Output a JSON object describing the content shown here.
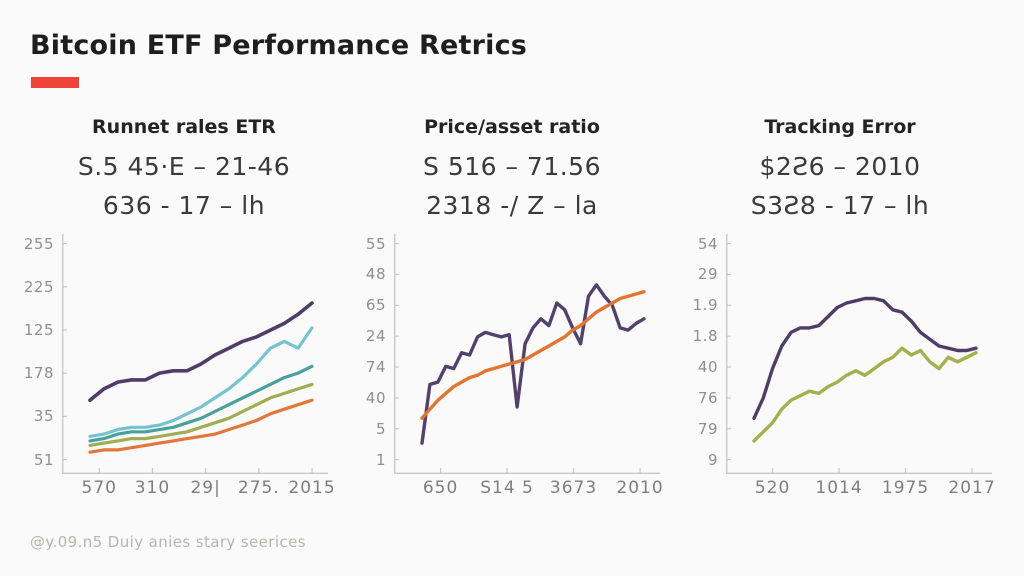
{
  "header": {
    "title": "Bitcoin ETF Performance Retrics",
    "accent_color": "#ee4438"
  },
  "metrics": [
    {
      "title": "Runnet rales ETR",
      "line1": "S.5 45·E – 21-46",
      "line2": "636 - 17 – lh"
    },
    {
      "title": "Price/asset ratio",
      "line1": "S 516 – 71.56",
      "line2": "2318 -/ Z – la"
    },
    {
      "title": "Tracking Error",
      "line1": "$2Ƨ6 – 2010",
      "line2": "S3Ƨ8 - 17 – lh"
    }
  ],
  "footer": {
    "caption": "@y.09.n5 Duiy anies stary seerices"
  },
  "chart_data": [
    {
      "type": "line",
      "title": "Runnet rales ETR",
      "xlabel": "",
      "ylabel": "",
      "grid": false,
      "legend": "none",
      "ylim": [
        0,
        100
      ],
      "y_tick_labels": [
        "255",
        "225",
        "125",
        "178",
        "35",
        "51"
      ],
      "x_tick_labels": [
        "570",
        "310",
        "29|",
        "275.",
        "2015"
      ],
      "series": [
        {
          "name": "purple-line",
          "color": "#4e3d68",
          "width": 3.6,
          "values": [
            30,
            35,
            38,
            39,
            39,
            42,
            43,
            43,
            46,
            50,
            53,
            56,
            58,
            61,
            64,
            68,
            73
          ]
        },
        {
          "name": "cyan-line",
          "color": "#74c3cf",
          "width": 3.2,
          "values": [
            14,
            15,
            17,
            18,
            18,
            19,
            21,
            24,
            27,
            31,
            35,
            40,
            46,
            53,
            56,
            53,
            62
          ]
        },
        {
          "name": "teal-line",
          "color": "#47a29b",
          "width": 3.2,
          "values": [
            12,
            13,
            15,
            16,
            16,
            17,
            18,
            20,
            22,
            25,
            28,
            31,
            34,
            37,
            40,
            42,
            45
          ]
        },
        {
          "name": "olive-line",
          "color": "#a0ad51",
          "width": 3.2,
          "values": [
            10,
            11,
            12,
            13,
            13,
            14,
            15,
            16,
            18,
            20,
            22,
            25,
            28,
            31,
            33,
            35,
            37
          ]
        },
        {
          "name": "orange-line",
          "color": "#e3773b",
          "width": 3.2,
          "values": [
            7,
            8,
            8,
            9,
            10,
            11,
            12,
            13,
            14,
            15,
            17,
            19,
            21,
            24,
            26,
            28,
            30
          ]
        }
      ]
    },
    {
      "type": "line",
      "title": "Price/asset ratio",
      "xlabel": "",
      "ylabel": "",
      "grid": false,
      "legend": "none",
      "ylim": [
        0,
        100
      ],
      "y_tick_labels": [
        "55",
        "48",
        "65",
        "24",
        "74",
        "40",
        "5",
        "1"
      ],
      "x_tick_labels": [
        "650",
        "S14 5",
        "3673",
        "2010"
      ],
      "series": [
        {
          "name": "purple-line",
          "color": "#53416d",
          "width": 3.4,
          "values": [
            11,
            37,
            38,
            45,
            44,
            51,
            50,
            58,
            60,
            59,
            58,
            59,
            27,
            55,
            62,
            66,
            63,
            73,
            70,
            62,
            55,
            76,
            81,
            76,
            72,
            62,
            61,
            64,
            66
          ]
        },
        {
          "name": "orange-line",
          "color": "#e2752f",
          "width": 3.4,
          "values": [
            22,
            26,
            30,
            33,
            36,
            38,
            40,
            41,
            43,
            44,
            45,
            46,
            47,
            48,
            50,
            52,
            54,
            56,
            58,
            61,
            63,
            66,
            69,
            71,
            73,
            75,
            76,
            77,
            78
          ]
        }
      ]
    },
    {
      "type": "line",
      "title": "Tracking Error",
      "xlabel": "",
      "ylabel": "",
      "grid": false,
      "legend": "none",
      "ylim": [
        0,
        100
      ],
      "y_tick_labels": [
        "54",
        "29",
        "1.9",
        "1.8",
        "40",
        "76",
        "79",
        "9"
      ],
      "x_tick_labels": [
        "520",
        "1014",
        "1975",
        "2017"
      ],
      "series": [
        {
          "name": "purple-line",
          "color": "#4e3d68",
          "width": 3.4,
          "values": [
            22,
            31,
            44,
            54,
            60,
            62,
            62,
            63,
            67,
            71,
            73,
            74,
            75,
            75,
            74,
            70,
            69,
            65,
            60,
            57,
            54,
            53,
            52,
            52,
            53
          ]
        },
        {
          "name": "olive-line",
          "color": "#a4b04c",
          "width": 3.4,
          "values": [
            12,
            16,
            20,
            26,
            30,
            32,
            34,
            33,
            36,
            38,
            41,
            43,
            41,
            44,
            47,
            49,
            53,
            50,
            52,
            47,
            44,
            49,
            47,
            49,
            51
          ]
        }
      ]
    }
  ]
}
